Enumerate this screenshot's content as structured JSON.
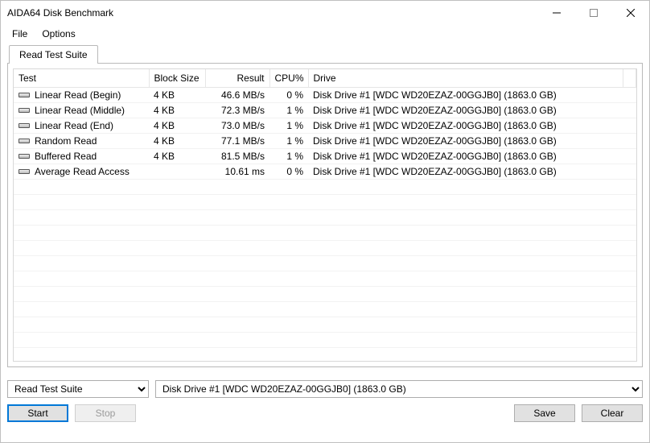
{
  "window": {
    "title": "AIDA64 Disk Benchmark"
  },
  "menu": {
    "file": "File",
    "options": "Options"
  },
  "tabs": {
    "read_test_suite": "Read Test Suite"
  },
  "table": {
    "columns": {
      "test": "Test",
      "block_size": "Block Size",
      "result": "Result",
      "cpu": "CPU%",
      "drive": "Drive"
    },
    "rows": [
      {
        "test": "Linear Read (Begin)",
        "block_size": "4 KB",
        "result": "46.6 MB/s",
        "cpu": "0 %",
        "drive": "Disk Drive #1  [WDC WD20EZAZ-00GGJB0]  (1863.0 GB)"
      },
      {
        "test": "Linear Read (Middle)",
        "block_size": "4 KB",
        "result": "72.3 MB/s",
        "cpu": "1 %",
        "drive": "Disk Drive #1  [WDC WD20EZAZ-00GGJB0]  (1863.0 GB)"
      },
      {
        "test": "Linear Read (End)",
        "block_size": "4 KB",
        "result": "73.0 MB/s",
        "cpu": "1 %",
        "drive": "Disk Drive #1  [WDC WD20EZAZ-00GGJB0]  (1863.0 GB)"
      },
      {
        "test": "Random Read",
        "block_size": "4 KB",
        "result": "77.1 MB/s",
        "cpu": "1 %",
        "drive": "Disk Drive #1  [WDC WD20EZAZ-00GGJB0]  (1863.0 GB)"
      },
      {
        "test": "Buffered Read",
        "block_size": "4 KB",
        "result": "81.5 MB/s",
        "cpu": "1 %",
        "drive": "Disk Drive #1  [WDC WD20EZAZ-00GGJB0]  (1863.0 GB)"
      },
      {
        "test": "Average Read Access",
        "block_size": "",
        "result": "10.61 ms",
        "cpu": "0 %",
        "drive": "Disk Drive #1  [WDC WD20EZAZ-00GGJB0]  (1863.0 GB)"
      }
    ],
    "empty_rows": 12
  },
  "controls": {
    "suite_select": "Read Test Suite",
    "drive_select": "Disk Drive #1  [WDC WD20EZAZ-00GGJB0]  (1863.0 GB)",
    "start": "Start",
    "stop": "Stop",
    "save": "Save",
    "clear": "Clear"
  }
}
